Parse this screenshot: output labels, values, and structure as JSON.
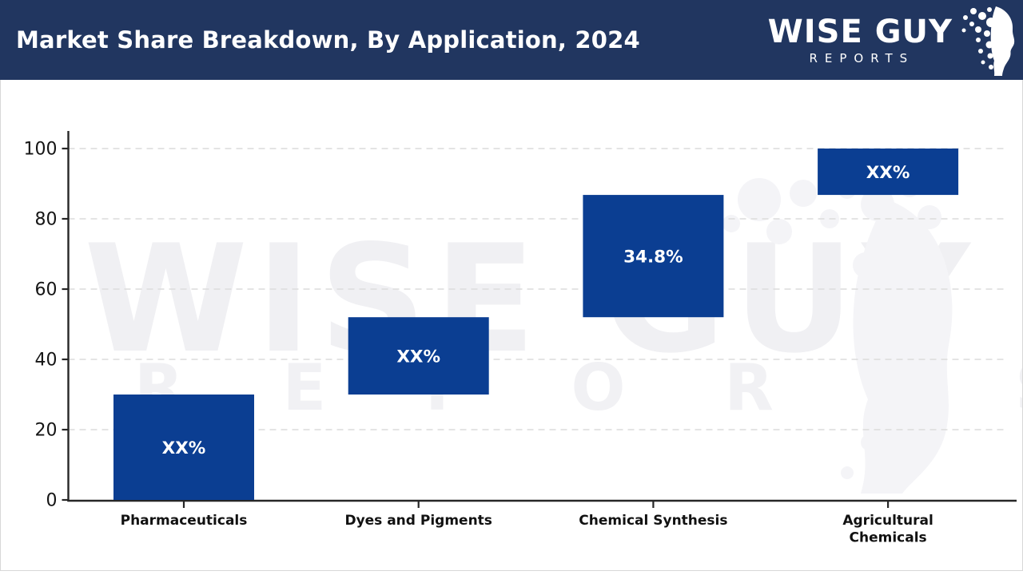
{
  "header": {
    "title": "Market Share Breakdown, By Application, 2024",
    "brand_line1": "WISE GUY",
    "brand_line2": "REPORTS",
    "bg_color": "#213660",
    "text_color": "#ffffff"
  },
  "watermark": {
    "line1": "WISE GUY",
    "line2": "R E P O R T S"
  },
  "chart_data": {
    "type": "bar",
    "variant": "floating-waterfall",
    "title": "Market Share Breakdown, By Application, 2024",
    "xlabel": "",
    "ylabel": "",
    "ylim": [
      0,
      100
    ],
    "yticks": [
      0,
      20,
      40,
      60,
      80,
      100
    ],
    "grid": "horizontal-dashed",
    "legend": "none",
    "categories": [
      "Pharmaceuticals",
      "Dyes and Pigments",
      "Chemical Synthesis",
      "Agricultural Chemicals"
    ],
    "bars": [
      {
        "category": "Pharmaceuticals",
        "start": 0,
        "end": 30,
        "label": "XX%"
      },
      {
        "category": "Dyes and Pigments",
        "start": 30,
        "end": 52,
        "label": "XX%"
      },
      {
        "category": "Chemical Synthesis",
        "start": 52,
        "end": 86.8,
        "label": "34.8%"
      },
      {
        "category": "Agricultural Chemicals",
        "start": 86.8,
        "end": 100,
        "label": "XX%"
      }
    ],
    "bar_color": "#0b3e92",
    "bar_label_color": "#ffffff",
    "axis_color": "#262626",
    "grid_color": "#dcdcdc",
    "tick_label_color": "#151515"
  }
}
